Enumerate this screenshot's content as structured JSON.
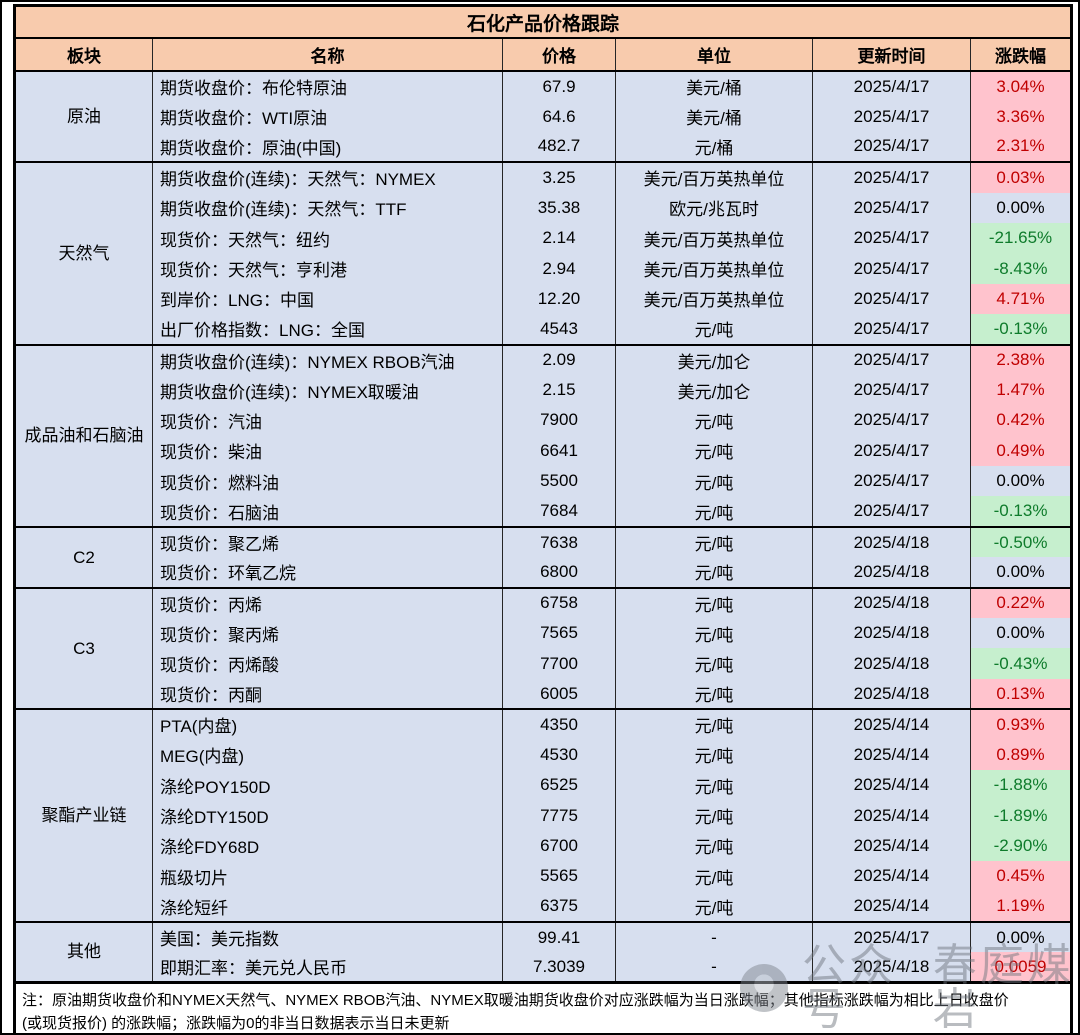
{
  "title": "石化产品价格跟踪",
  "columns": [
    "板块",
    "名称",
    "价格",
    "单位",
    "更新时间",
    "涨跌幅"
  ],
  "sections": [
    {
      "label": "原油",
      "rows": [
        {
          "name": "期货收盘价：布伦特原油",
          "price": "67.9",
          "unit": "美元/桶",
          "date": "2025/4/17",
          "change": "3.04%",
          "trend": "up"
        },
        {
          "name": "期货收盘价：WTI原油",
          "price": "64.6",
          "unit": "美元/桶",
          "date": "2025/4/17",
          "change": "3.36%",
          "trend": "up"
        },
        {
          "name": "期货收盘价：原油(中国)",
          "price": "482.7",
          "unit": "元/桶",
          "date": "2025/4/17",
          "change": "2.31%",
          "trend": "up"
        }
      ]
    },
    {
      "label": "天然气",
      "rows": [
        {
          "name": "期货收盘价(连续)：天然气：NYMEX",
          "price": "3.25",
          "unit": "美元/百万英热单位",
          "date": "2025/4/17",
          "change": "0.03%",
          "trend": "up"
        },
        {
          "name": "期货收盘价(连续)：天然气：TTF",
          "price": "35.38",
          "unit": "欧元/兆瓦时",
          "date": "2025/4/17",
          "change": "0.00%",
          "trend": "flat"
        },
        {
          "name": "现货价：天然气：纽约",
          "price": "2.14",
          "unit": "美元/百万英热单位",
          "date": "2025/4/17",
          "change": "-21.65%",
          "trend": "down"
        },
        {
          "name": "现货价：天然气：亨利港",
          "price": "2.94",
          "unit": "美元/百万英热单位",
          "date": "2025/4/17",
          "change": "-8.43%",
          "trend": "down"
        },
        {
          "name": "到岸价：LNG：中国",
          "price": "12.20",
          "unit": "美元/百万英热单位",
          "date": "2025/4/17",
          "change": "4.71%",
          "trend": "up"
        },
        {
          "name": "出厂价格指数：LNG：全国",
          "price": "4543",
          "unit": "元/吨",
          "date": "2025/4/17",
          "change": "-0.13%",
          "trend": "down"
        }
      ]
    },
    {
      "label": "成品油和石脑油",
      "rows": [
        {
          "name": "期货收盘价(连续)：NYMEX RBOB汽油",
          "price": "2.09",
          "unit": "美元/加仑",
          "date": "2025/4/17",
          "change": "2.38%",
          "trend": "up"
        },
        {
          "name": "期货收盘价(连续)：NYMEX取暖油",
          "price": "2.15",
          "unit": "美元/加仑",
          "date": "2025/4/17",
          "change": "1.47%",
          "trend": "up"
        },
        {
          "name": "现货价：汽油",
          "price": "7900",
          "unit": "元/吨",
          "date": "2025/4/17",
          "change": "0.42%",
          "trend": "up"
        },
        {
          "name": "现货价：柴油",
          "price": "6641",
          "unit": "元/吨",
          "date": "2025/4/17",
          "change": "0.49%",
          "trend": "up"
        },
        {
          "name": "现货价：燃料油",
          "price": "5500",
          "unit": "元/吨",
          "date": "2025/4/17",
          "change": "0.00%",
          "trend": "flat"
        },
        {
          "name": "现货价：石脑油",
          "price": "7684",
          "unit": "元/吨",
          "date": "2025/4/17",
          "change": "-0.13%",
          "trend": "down"
        }
      ]
    },
    {
      "label": "C2",
      "rows": [
        {
          "name": "现货价：聚乙烯",
          "price": "7638",
          "unit": "元/吨",
          "date": "2025/4/18",
          "change": "-0.50%",
          "trend": "down"
        },
        {
          "name": "现货价：环氧乙烷",
          "price": "6800",
          "unit": "元/吨",
          "date": "2025/4/18",
          "change": "0.00%",
          "trend": "flat"
        }
      ]
    },
    {
      "label": "C3",
      "rows": [
        {
          "name": "现货价：丙烯",
          "price": "6758",
          "unit": "元/吨",
          "date": "2025/4/18",
          "change": "0.22%",
          "trend": "up"
        },
        {
          "name": "现货价：聚丙烯",
          "price": "7565",
          "unit": "元/吨",
          "date": "2025/4/18",
          "change": "0.00%",
          "trend": "flat"
        },
        {
          "name": "现货价：丙烯酸",
          "price": "7700",
          "unit": "元/吨",
          "date": "2025/4/18",
          "change": "-0.43%",
          "trend": "down"
        },
        {
          "name": "现货价：丙酮",
          "price": "6005",
          "unit": "元/吨",
          "date": "2025/4/18",
          "change": "0.13%",
          "trend": "up"
        }
      ]
    },
    {
      "label": "聚酯产业链",
      "rows": [
        {
          "name": "PTA(内盘)",
          "price": "4350",
          "unit": "元/吨",
          "date": "2025/4/14",
          "change": "0.93%",
          "trend": "up"
        },
        {
          "name": "MEG(内盘)",
          "price": "4530",
          "unit": "元/吨",
          "date": "2025/4/14",
          "change": "0.89%",
          "trend": "up"
        },
        {
          "name": "涤纶POY150D",
          "price": "6525",
          "unit": "元/吨",
          "date": "2025/4/14",
          "change": "-1.88%",
          "trend": "down"
        },
        {
          "name": "涤纶DTY150D",
          "price": "7775",
          "unit": "元/吨",
          "date": "2025/4/14",
          "change": "-1.89%",
          "trend": "down"
        },
        {
          "name": "涤纶FDY68D",
          "price": "6700",
          "unit": "元/吨",
          "date": "2025/4/14",
          "change": "-2.90%",
          "trend": "down"
        },
        {
          "name": "瓶级切片",
          "price": "5565",
          "unit": "元/吨",
          "date": "2025/4/14",
          "change": "0.45%",
          "trend": "up"
        },
        {
          "name": "涤纶短纤",
          "price": "6375",
          "unit": "元/吨",
          "date": "2025/4/14",
          "change": "1.19%",
          "trend": "up"
        }
      ]
    },
    {
      "label": "其他",
      "rows": [
        {
          "name": "美国：美元指数",
          "price": "99.41",
          "unit": "-",
          "date": "2025/4/17",
          "change": "0.00%",
          "trend": "flat"
        },
        {
          "name": "即期汇率：美元兑人民币",
          "price": "7.3039",
          "unit": "-",
          "date": "2025/4/18",
          "change": "0.0059",
          "trend": "up"
        }
      ]
    }
  ],
  "note": {
    "line1": "注：原油期货收盘价和NYMEX天然气、NYMEX RBOB汽油、NYMEX取暖油期货收盘价对应涨跌幅为当日涨跌幅；其他指标涨跌幅为相比上日收盘价",
    "line2": "(或现货报价) 的涨跌幅；涨跌幅为0的非当日数据表示当日未更新"
  },
  "watermark": {
    "icon": "wechat-official-account-logo-icon",
    "text1": "公众号",
    "text2": "春庭煤岩"
  },
  "colors": {
    "header_bg": "#F8CBAD",
    "body_bg": "#D7DFEF",
    "up_bg": "#FFC3CD",
    "up_text": "#C00000",
    "down_bg": "#C6EFCE",
    "down_text": "#0E7B2B",
    "border": "#000000"
  }
}
